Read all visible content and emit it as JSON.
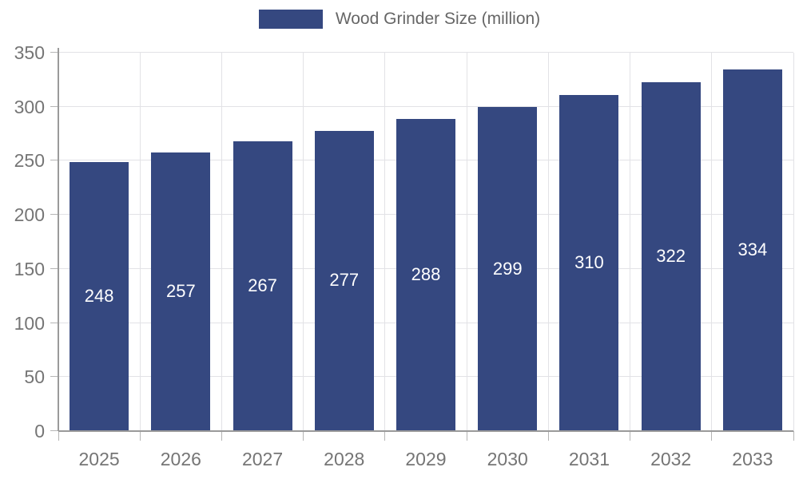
{
  "legend": {
    "label": "Wood Grinder Size (million)"
  },
  "colors": {
    "bar": "#354880",
    "background": "#ffffff",
    "grid": "#e2e2e6",
    "axis": "#9a9a9a",
    "tick": "#b5b5b5",
    "tick_label": "#757575",
    "legend_text": "#666666",
    "value_label": "#ffffff"
  },
  "chart_data": {
    "type": "bar",
    "title": "",
    "xlabel": "",
    "ylabel": "",
    "categories": [
      "2025",
      "2026",
      "2027",
      "2028",
      "2029",
      "2030",
      "2031",
      "2032",
      "2033"
    ],
    "series": [
      {
        "name": "Wood Grinder Size (million)",
        "values": [
          248,
          257,
          267,
          277,
          288,
          299,
          310,
          322,
          334
        ],
        "color": "#354880"
      }
    ],
    "value_labels": {
      "position": "inside-center",
      "color": "#ffffff"
    },
    "ylim": [
      0,
      350
    ],
    "yticks": [
      0,
      50,
      100,
      150,
      200,
      250,
      300,
      350
    ],
    "grid": "on",
    "legend_position": "top-center"
  }
}
